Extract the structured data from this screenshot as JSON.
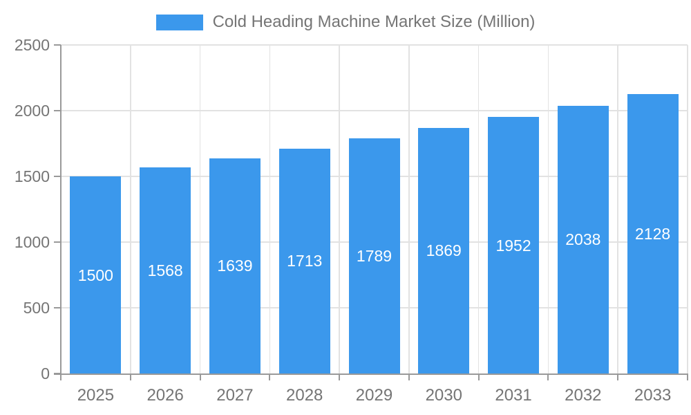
{
  "legend": {
    "label": "Cold Heading Machine Market Size (Million)"
  },
  "chart_data": {
    "type": "bar",
    "title": "Cold Heading Machine Market Size (Million)",
    "categories": [
      "2025",
      "2026",
      "2027",
      "2028",
      "2029",
      "2030",
      "2031",
      "2032",
      "2033"
    ],
    "series": [
      {
        "name": "Cold Heading Machine Market Size (Million)",
        "values": [
          1500,
          1568,
          1639,
          1713,
          1789,
          1869,
          1952,
          2038,
          2128
        ]
      }
    ],
    "xlabel": "",
    "ylabel": "",
    "ylim": [
      0,
      2500
    ],
    "yticks": [
      0,
      500,
      1000,
      1500,
      2000,
      2500
    ],
    "grid": true,
    "legend_position": "top-center",
    "value_label_position": "inside-center"
  },
  "colors": {
    "bar": "#3b98ec",
    "grid": "#e2e2e2",
    "axis": "#999999",
    "tick_text": "#757575",
    "value_text": "#ffffff",
    "background": "#ffffff"
  }
}
